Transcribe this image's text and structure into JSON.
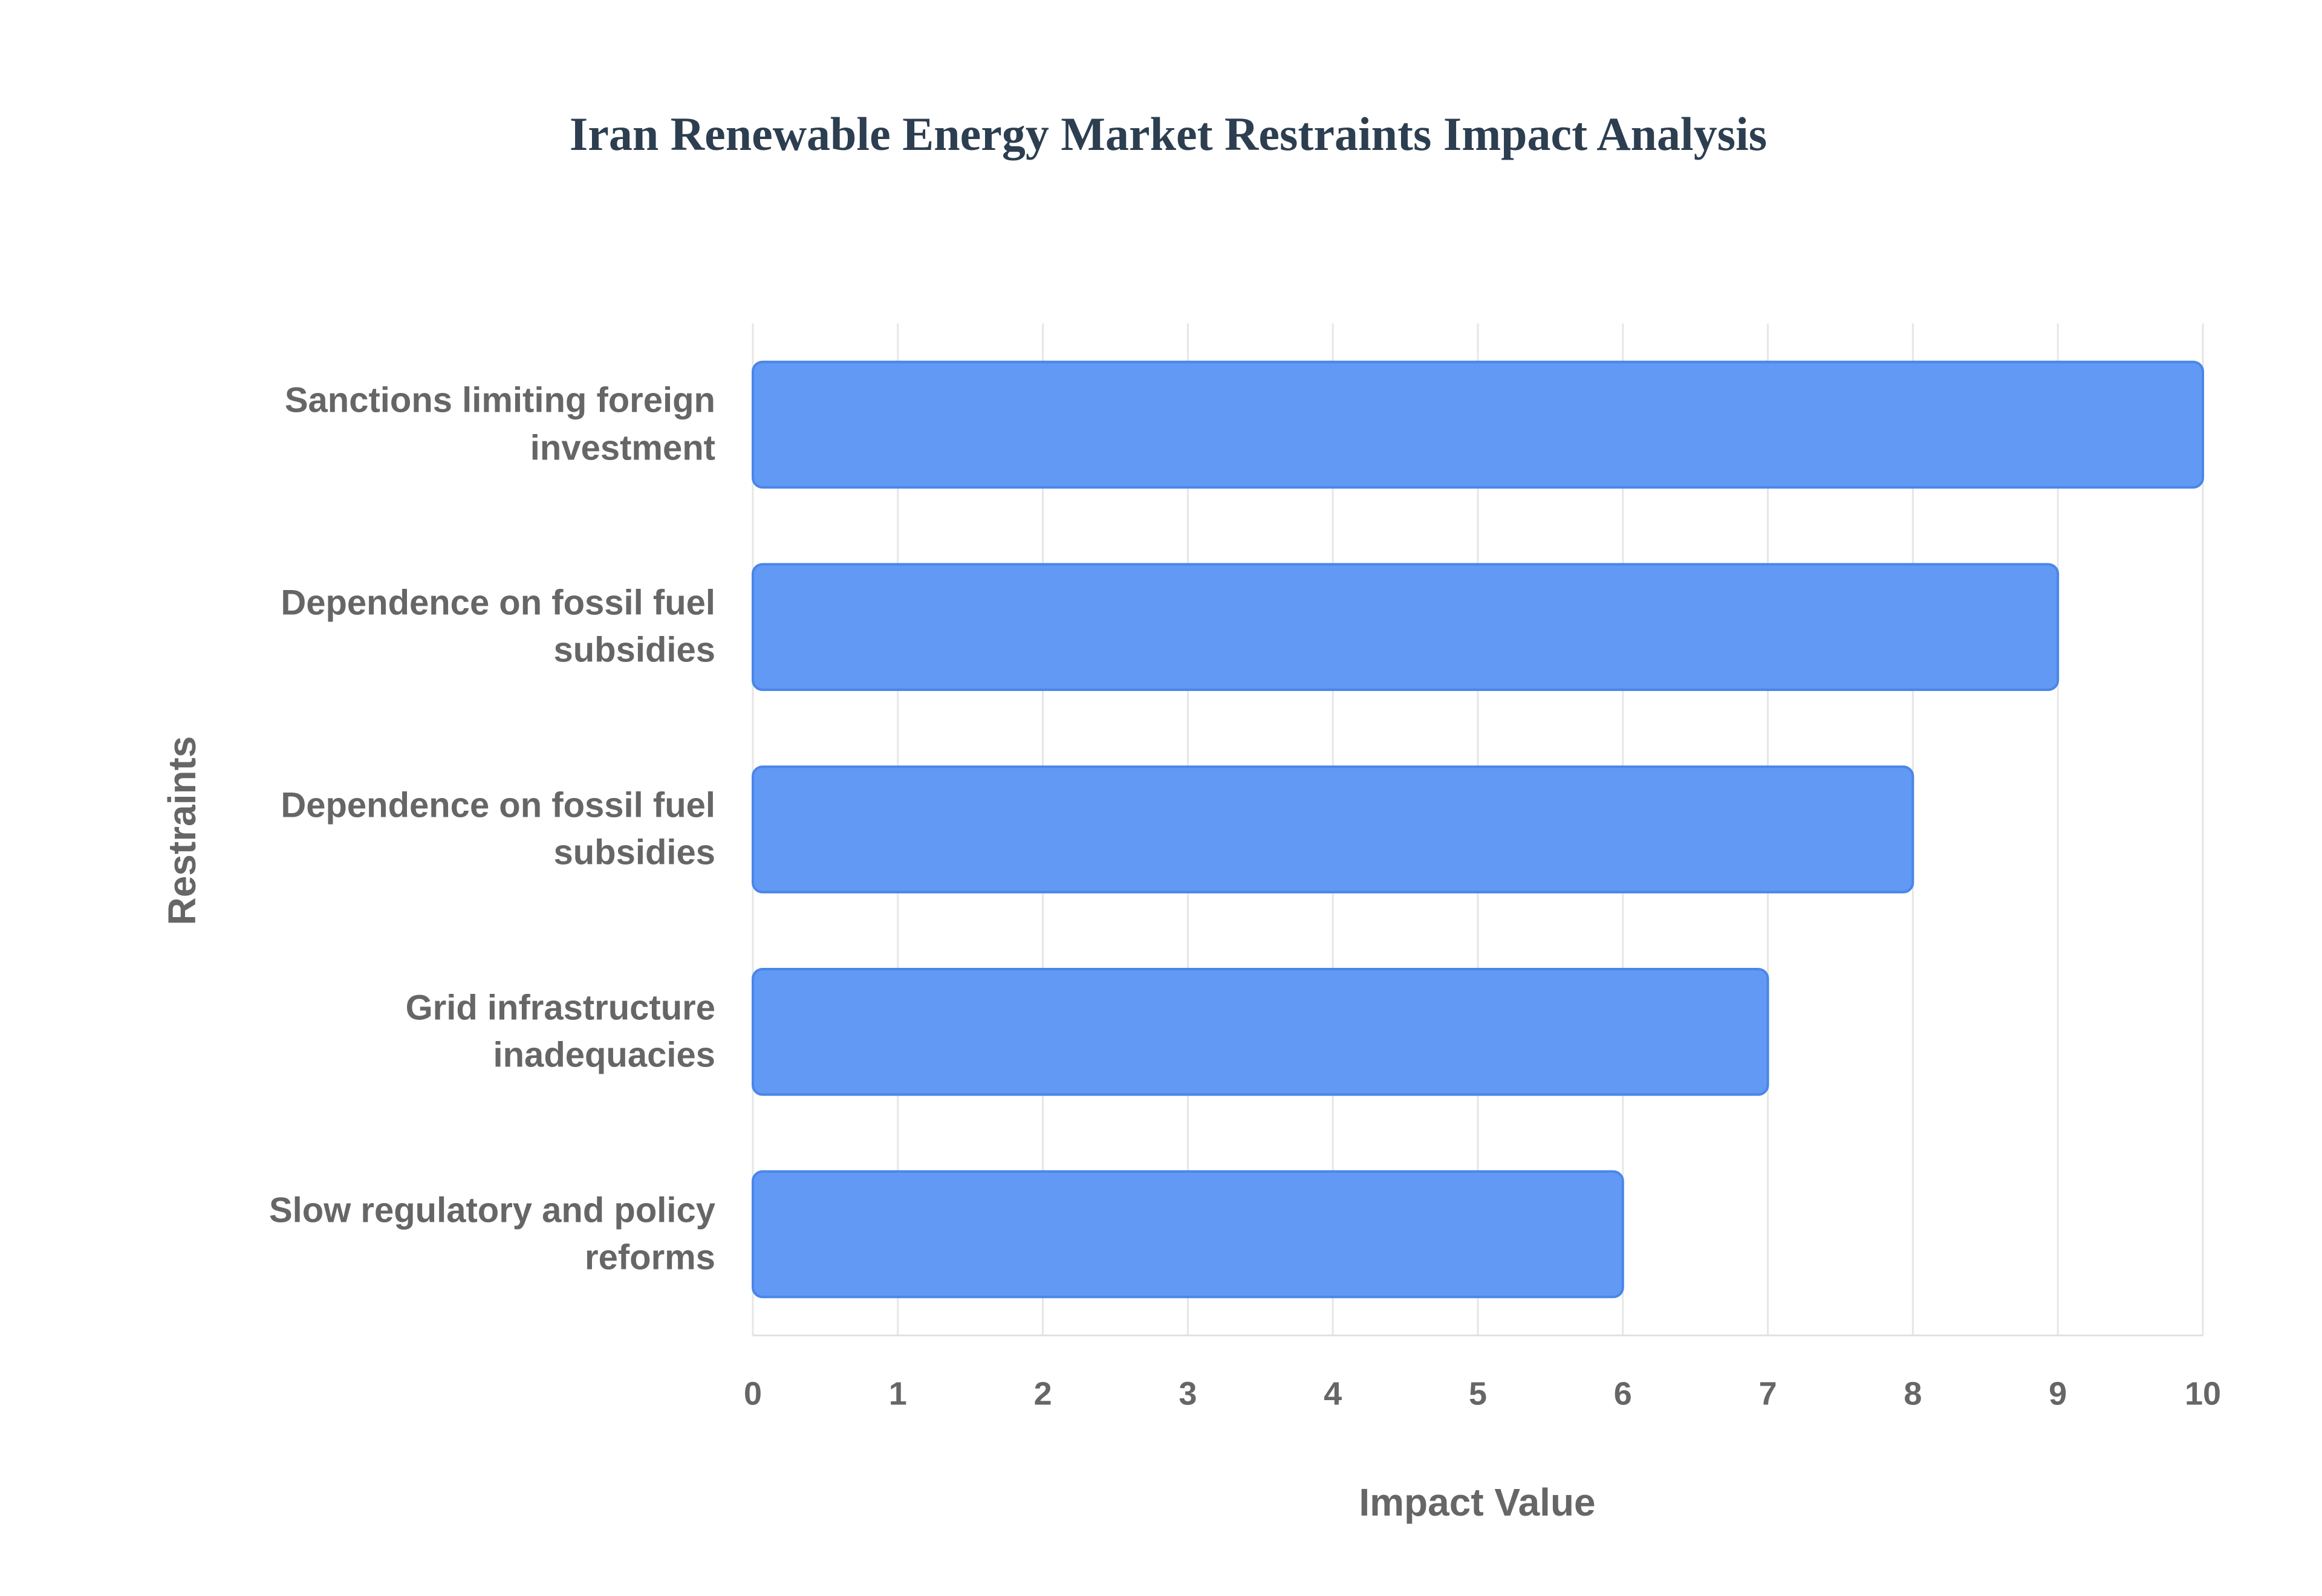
{
  "chart_data": {
    "type": "bar",
    "orientation": "horizontal",
    "title": "Iran Renewable Energy Market Restraints Impact Analysis",
    "x_label": "Impact Value",
    "y_label": "Restraints",
    "categories": [
      "Sanctions limiting foreign investment",
      "Dependence on fossil fuel subsidies",
      "Dependence on fossil fuel subsidies",
      "Grid infrastructure inadequacies",
      "Slow regulatory and policy reforms"
    ],
    "values": [
      10,
      9,
      8,
      7,
      6
    ],
    "color": "#6199f5",
    "border_color": "#4a86e8",
    "xlim": [
      0,
      10
    ],
    "xticks": [
      0,
      1,
      2,
      3,
      4,
      5,
      6,
      7,
      8,
      9,
      10
    ],
    "grid": true
  }
}
